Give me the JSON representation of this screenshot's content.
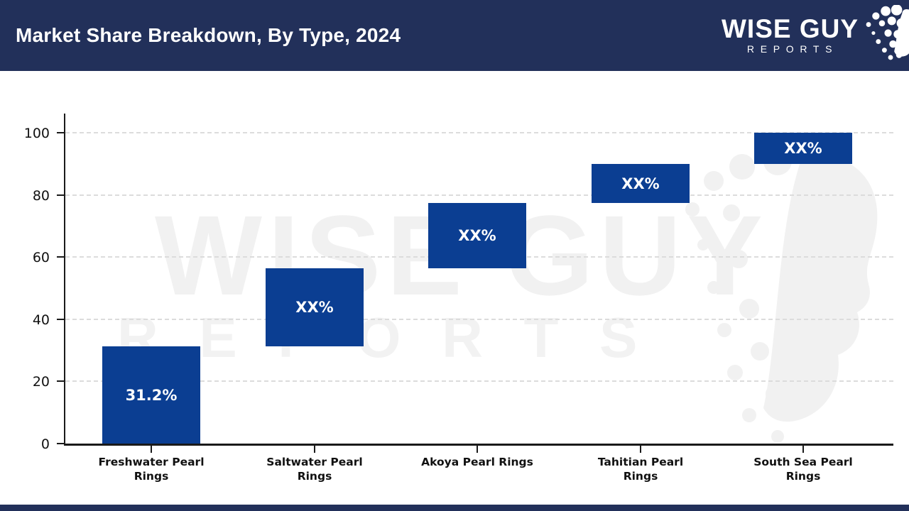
{
  "header": {
    "title": "Market Share Breakdown, By Type, 2024",
    "bg_color": "#22305A",
    "logo_line1": "WISE GUY",
    "logo_line2": "REPORTS"
  },
  "watermark": {
    "line1": "WISE GUY",
    "line2": "REPORTS"
  },
  "chart_data": {
    "type": "bar",
    "subtype": "waterfall",
    "title": "Market Share Breakdown, By Type, 2024",
    "bar_color": "#0B3E92",
    "bar_label_color": "#ffffff",
    "grid": "horizontal-dashed",
    "yticks": [
      0,
      20,
      40,
      60,
      80,
      100
    ],
    "ylim": [
      0,
      106
    ],
    "segments": [
      {
        "category": "Freshwater Pearl\nRings",
        "start": 0,
        "end": 31.2,
        "label": "31.2%"
      },
      {
        "category": "Saltwater Pearl\nRings",
        "start": 31.2,
        "end": 56.4,
        "label": "XX%"
      },
      {
        "category": "Akoya Pearl Rings",
        "start": 56.4,
        "end": 77.4,
        "label": "XX%"
      },
      {
        "category": "Tahitian Pearl\nRings",
        "start": 77.4,
        "end": 89.9,
        "label": "XX%"
      },
      {
        "category": "South Sea Pearl\nRings",
        "start": 89.9,
        "end": 100,
        "label": "XX%"
      }
    ]
  }
}
